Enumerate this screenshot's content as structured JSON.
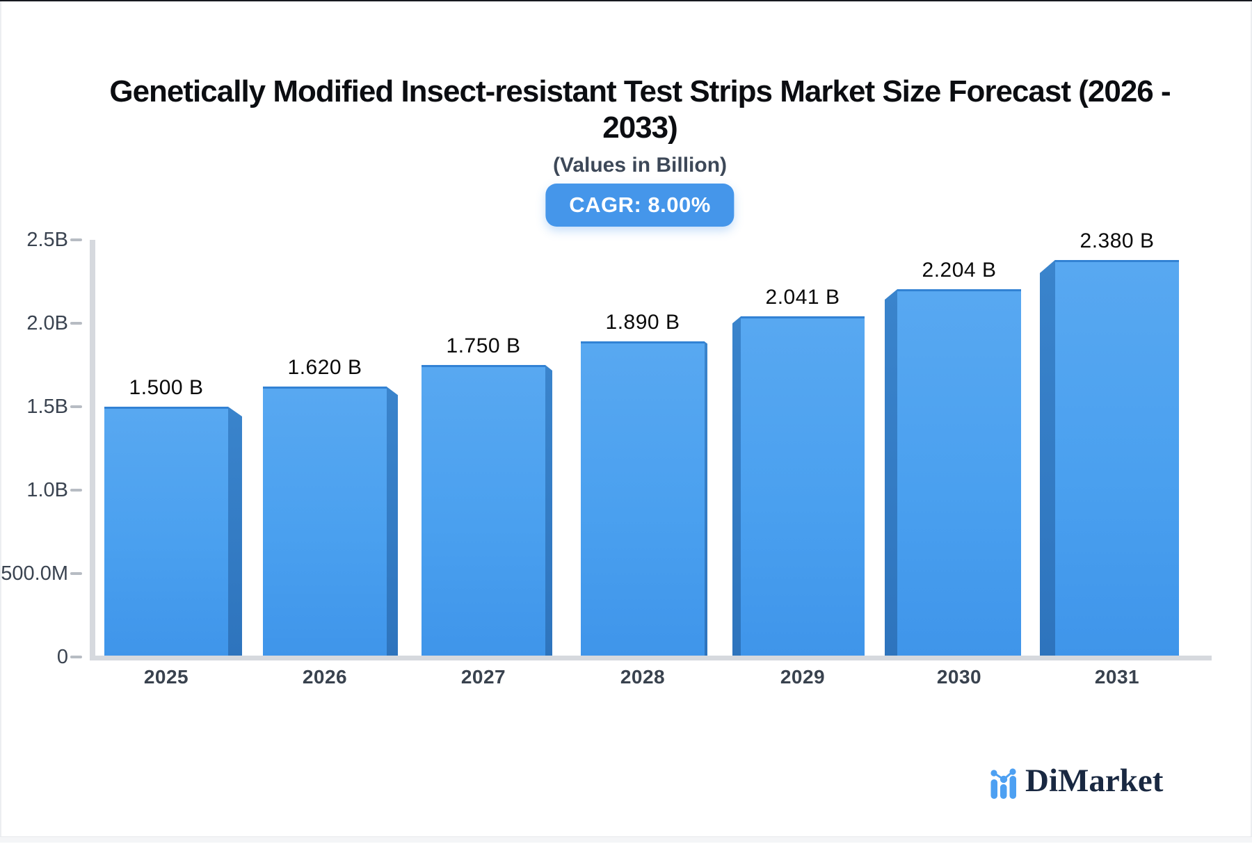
{
  "header": {
    "title_line1": "Genetically Modified Insect-resistant Test Strips Market Size Forecast (2026 -",
    "title_line2": "2033)",
    "subtitle": "(Values in Billion)",
    "cagr_badge_label": "CAGR: 8.00%"
  },
  "logo": {
    "text": "DiMarket",
    "icon": "mini-bar-chart-logo-icon",
    "icon_color": "#4da0f2",
    "text_color": "#192841"
  },
  "chart_data": {
    "type": "bar",
    "title": "Genetically Modified Insect-resistant Test Strips Market Size Forecast (2026 - 2033)",
    "subtitle": "(Values in Billion)",
    "cagr_percent": "8.00%",
    "categories": [
      "2025",
      "2026",
      "2027",
      "2028",
      "2029",
      "2030",
      "2031"
    ],
    "values": [
      1.5,
      1.62,
      1.75,
      1.89,
      2.041,
      2.204,
      2.38
    ],
    "value_labels": [
      "1.500 B",
      "1.620 B",
      "1.750 B",
      "1.890 B",
      "2.041 B",
      "2.204 B",
      "2.380 B"
    ],
    "yticks": {
      "labels": [
        "2.5B",
        "2.0B",
        "1.5B",
        "1.0B",
        "500.0M",
        "0"
      ],
      "values": [
        2.5,
        2.0,
        1.5,
        1.0,
        0.5,
        0
      ]
    },
    "ylim": [
      0,
      2.5
    ],
    "xlabel": "",
    "ylabel": "",
    "grid": false,
    "legend": false,
    "style_3d": true,
    "colors": {
      "bar_face": "#4aa0ef",
      "bar_face_top": "#58a8f1",
      "bar_edge_top": "#3282d4",
      "bar_side": "#2f77c0",
      "axis_line": "#d6d9de",
      "tick_mark": "#b7bcc3",
      "axis_text": "#3a4350",
      "value_text": "#0a0a0a",
      "badge_bg": "#4596ea",
      "badge_text": "#ffffff"
    }
  }
}
